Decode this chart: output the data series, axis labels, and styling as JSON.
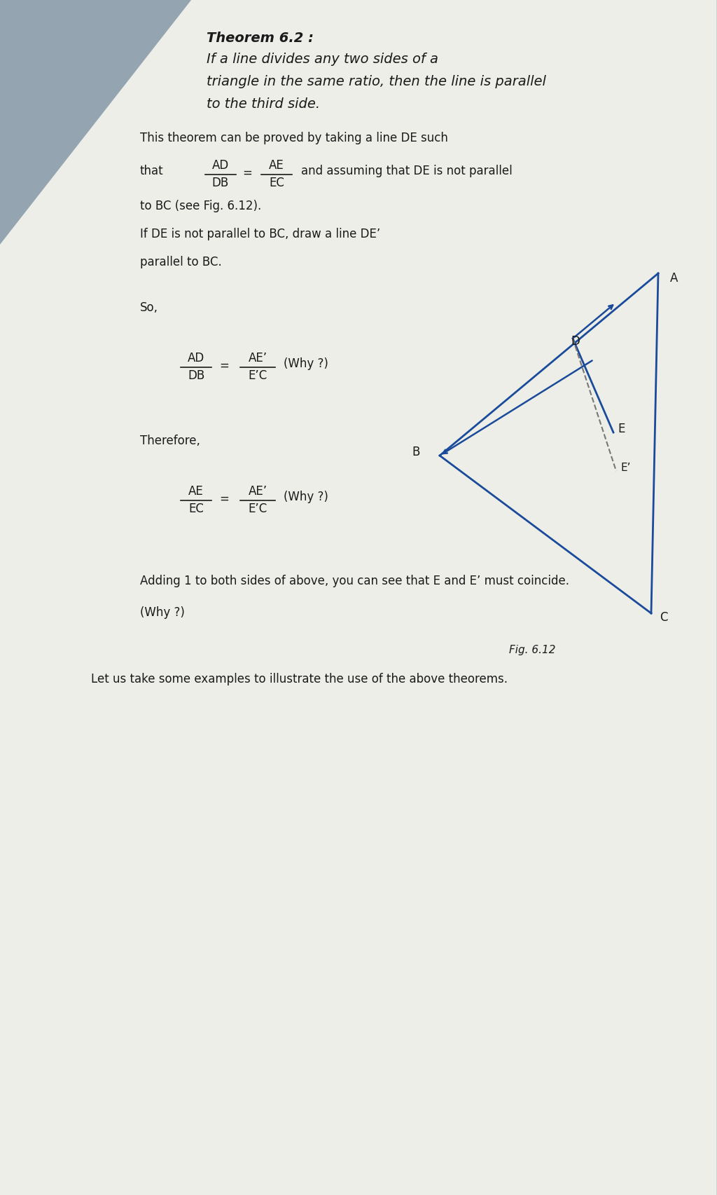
{
  "bg_color": "#c8d4d8",
  "paper_color": "#edeee8",
  "shadow_color": "#8899a8",
  "text_color": "#1a1a1a",
  "triangle_color": "#1a4a9a",
  "fig_label": "Fig. 6.12",
  "title_bold": "Theorem 6.2 :",
  "title_italic": " If a line divides any two sides of a",
  "line2": "triangle in the same ratio, then the line is parallel",
  "line3": "to the third side.",
  "body1": "This theorem can be proved by taking a line DE such",
  "body2a": "that",
  "frac1n": "AD",
  "frac1d": "DB",
  "frac2n": "AE",
  "frac2d": "EC",
  "body2b": "and assuming that DE is not parallel",
  "body3": "to BC (see Fig. 6.12).",
  "body4": "If DE is not parallel to BC, draw a line DE’",
  "body5": "parallel to BC.",
  "so": "So,",
  "eq1n1": "AD",
  "eq1d1": "DB",
  "eq1n2": "AE’",
  "eq1d2": "E’C",
  "why1": "(Why ?)",
  "therefore": "Therefore,",
  "eq2n1": "AE",
  "eq2d1": "EC",
  "eq2n2": "AE’",
  "eq2d2": "E’C",
  "why2": "(Why ?)",
  "adding": "Adding 1 to both sides of above, you can see that E and E’ must coincide.",
  "why3": "(Why ?)",
  "last": "Let us take some examples to illustrate the use of the above theorems."
}
